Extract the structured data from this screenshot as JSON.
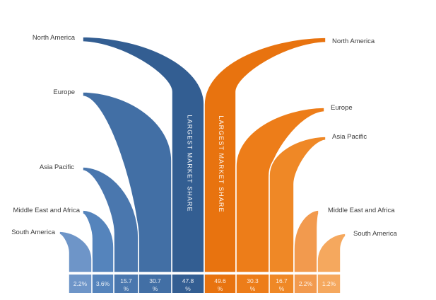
{
  "page": {
    "background": "#ffffff"
  },
  "chart_data": {
    "type": "bar",
    "variant": "mirrored-swoosh-market-share-funnel",
    "title": "",
    "grid": false,
    "legend": "none",
    "center_label_left": "LARGEST MARKET SHARE",
    "center_label_right": "LARGEST MARKET SHARE",
    "label_color": "#3a3a3a",
    "value_text_color": "#ffffff",
    "left_series": {
      "name": "left-market",
      "regions": [
        "North America",
        "Europe",
        "Asia Pacific",
        "Middle East and Africa",
        "South America"
      ],
      "values_pct": [
        47.8,
        30.7,
        15.7,
        3.6,
        2.2
      ],
      "colors": [
        "#335E92",
        "#426FA5",
        "#4A77AE",
        "#5584BC",
        "#6E95C8"
      ]
    },
    "right_series": {
      "name": "right-market",
      "regions": [
        "North America",
        "Europe",
        "Asia Pacific",
        "Middle East and Africa",
        "South America"
      ],
      "values_pct": [
        49.6,
        30.3,
        16.7,
        2.2,
        1.2
      ],
      "colors": [
        "#E8730F",
        "#ED7D19",
        "#EF8826",
        "#F29A4E",
        "#F5A85E"
      ]
    },
    "bar_labels": [
      [
        "2.2%"
      ],
      [
        "3.6%"
      ],
      [
        "15.7",
        "%"
      ],
      [
        "30.7",
        "%"
      ],
      [
        "47.8",
        "%"
      ],
      [
        "49.6",
        "%"
      ],
      [
        "30.3",
        "%"
      ],
      [
        "16.7",
        "%"
      ],
      [
        "2.2%"
      ],
      [
        "1.2%"
      ]
    ]
  }
}
